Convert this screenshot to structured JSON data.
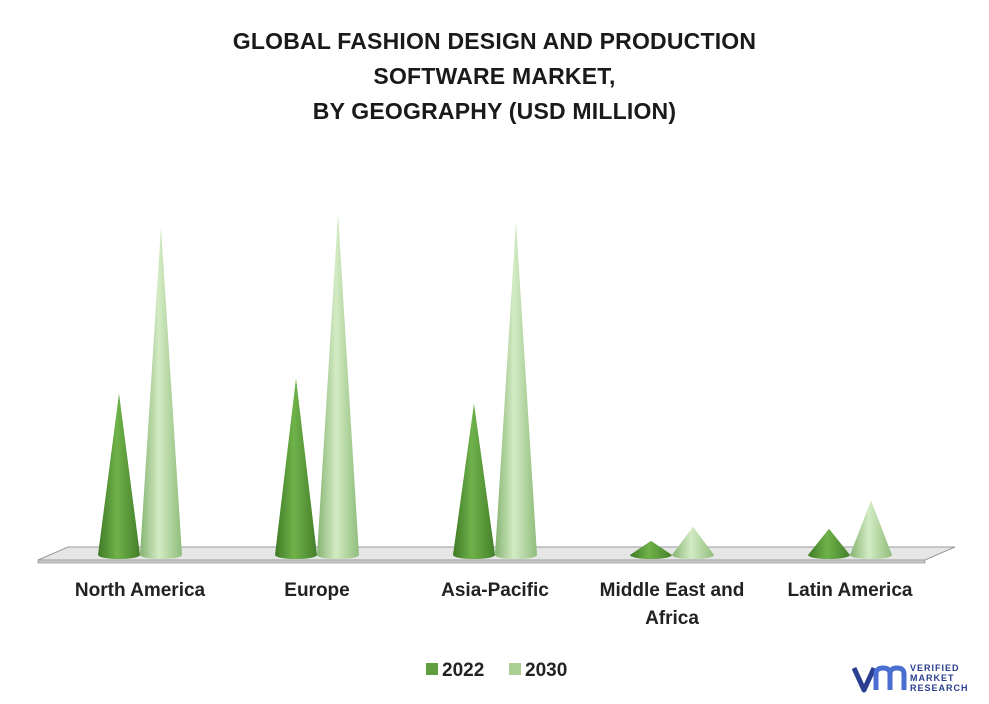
{
  "title_lines": [
    "GLOBAL FASHION DESIGN AND PRODUCTION",
    "SOFTWARE MARKET,",
    "BY GEOGRAPHY (USD MILLION)"
  ],
  "colors": {
    "series_2022": "#5e9e3e",
    "series_2030": "#a9cf93",
    "floor": "#e6e6e6",
    "logo_blue": "#2a3f8f"
  },
  "logo": {
    "line1": "VERIFIED",
    "line2": "MARKET",
    "line3": "RESEARCH"
  },
  "chart_data": {
    "type": "bar",
    "title": "GLOBAL FASHION DESIGN AND PRODUCTION SOFTWARE MARKET, BY GEOGRAPHY (USD MILLION)",
    "categories": [
      [
        "North America"
      ],
      [
        "Europe"
      ],
      [
        "Asia-Pacific"
      ],
      [
        "Middle East and",
        "Africa"
      ],
      [
        "Latin America"
      ]
    ],
    "series": [
      {
        "name": "2022",
        "values": [
          160,
          175,
          150,
          14,
          26
        ]
      },
      {
        "name": "2030",
        "values": [
          325,
          338,
          330,
          28,
          54
        ]
      }
    ],
    "ylim": [
      0,
      340
    ],
    "grid": false,
    "legend_position": "bottom"
  }
}
